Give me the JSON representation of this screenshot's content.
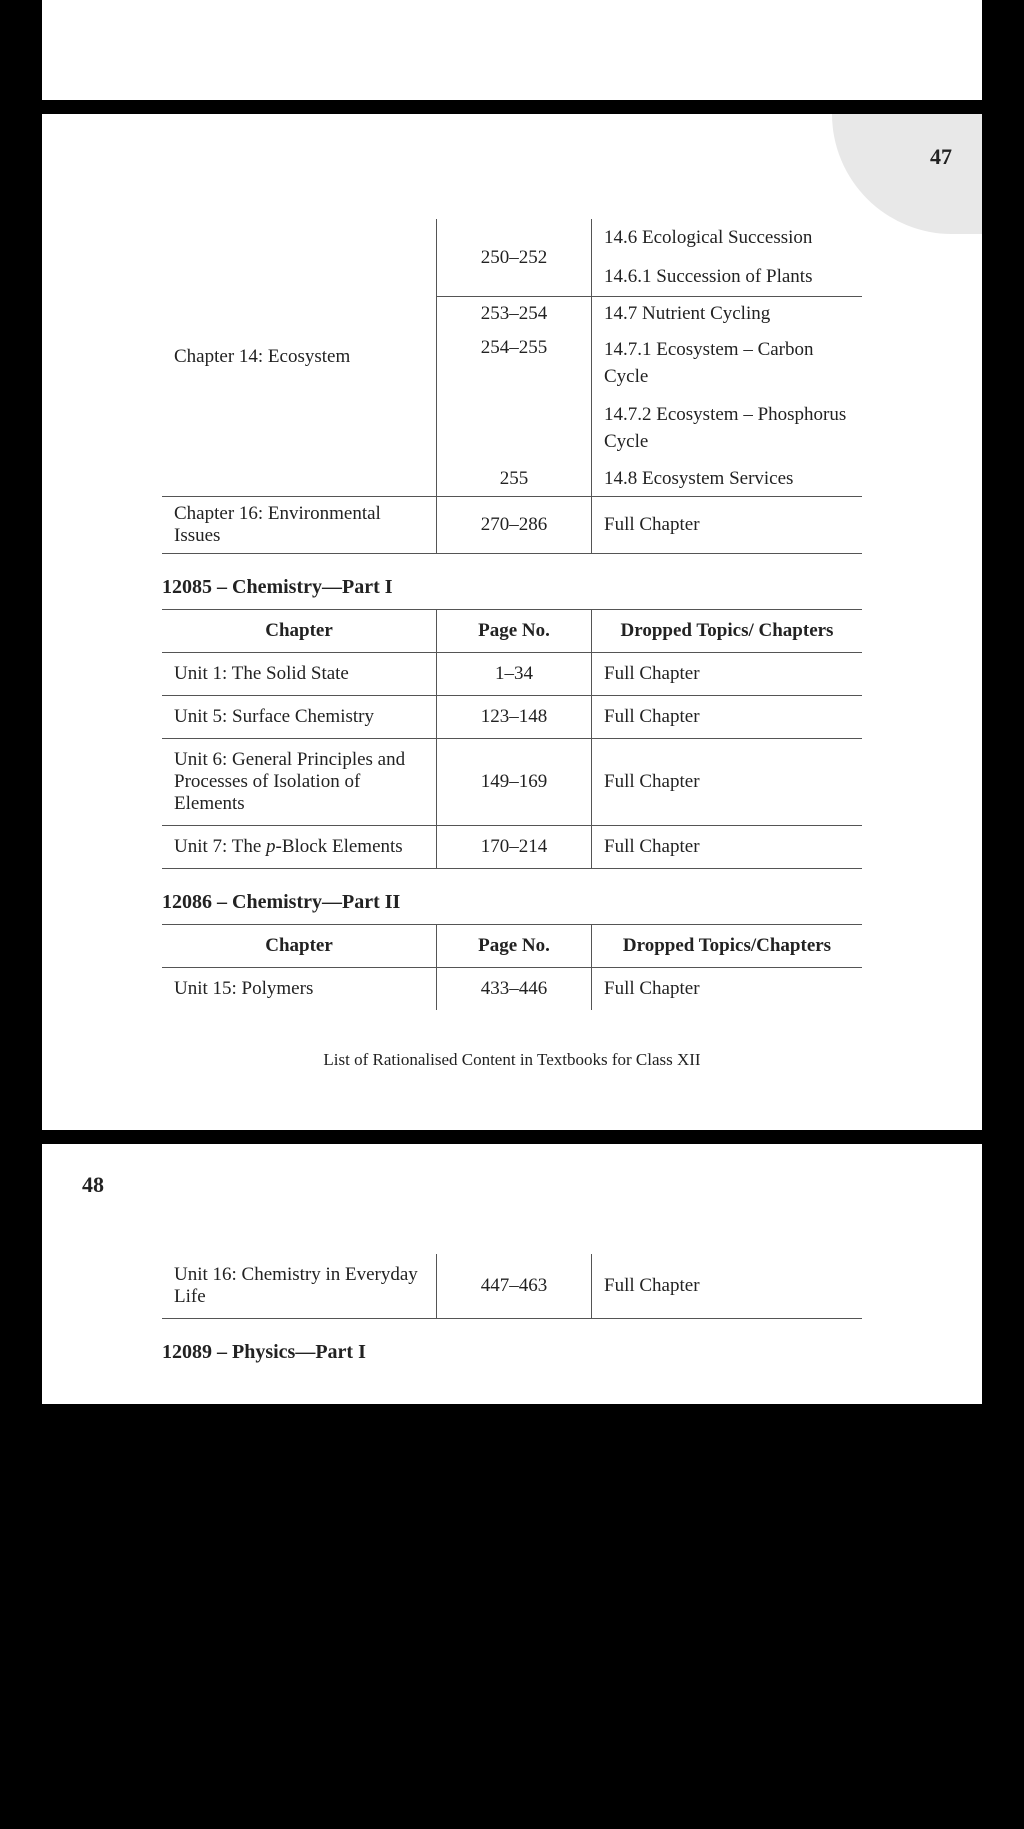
{
  "page47": {
    "number": "47",
    "ecosystem_table": {
      "chapter14_label": "Chapter 14: Ecosystem",
      "rows": [
        {
          "pages": "250–252",
          "topics": [
            "14.6 Ecological Succession",
            "14.6.1 Succession of Plants"
          ]
        },
        {
          "pages": "253–254",
          "topics": [
            "14.7 Nutrient Cycling"
          ]
        },
        {
          "pages": "254–255",
          "topics": [
            "14.7.1 Ecosystem – Carbon Cycle",
            "14.7.2 Ecosystem – Phosphorus Cycle"
          ]
        },
        {
          "pages": "255",
          "topics": [
            "14.8 Ecosystem Services"
          ]
        }
      ],
      "chapter16_label": "Chapter 16: Environmental Issues",
      "chapter16_pages": "270–286",
      "chapter16_dropped": "Full Chapter"
    },
    "chem1_title": "12085 – Chemistry—Part I",
    "chem1_table": {
      "headers": {
        "chapter": "Chapter",
        "page": "Page No.",
        "dropped": "Dropped Topics/ Chapters"
      },
      "rows": [
        {
          "chapter": "Unit 1: The Solid State",
          "pages": "1–34",
          "dropped": "Full Chapter"
        },
        {
          "chapter": "Unit 5: Surface Chemistry",
          "pages": "123–148",
          "dropped": "Full Chapter"
        },
        {
          "chapter": "Unit 6: General Principles and Processes of Isolation of Elements",
          "pages": "149–169",
          "dropped": "Full Chapter"
        },
        {
          "chapter_html": "Unit 7: The <i>p</i>-Block Elements",
          "chapter": "Unit 7: The p-Block Elements",
          "pages": "170–214",
          "dropped": "Full Chapter"
        }
      ]
    },
    "chem2_title": "12086 – Chemistry—Part II",
    "chem2_table": {
      "headers": {
        "chapter": "Chapter",
        "page": "Page No.",
        "dropped": "Dropped Topics/Chapters"
      },
      "rows": [
        {
          "chapter": "Unit 15: Polymers",
          "pages": "433–446",
          "dropped": "Full Chapter"
        }
      ]
    },
    "footer": "List of Rationalised Content in Textbooks for Class XII"
  },
  "page48": {
    "number": "48",
    "chem2_cont": {
      "rows": [
        {
          "chapter": "Unit 16: Chemistry in Everyday Life",
          "pages": "447–463",
          "dropped": "Full Chapter"
        }
      ]
    },
    "physics_title": "12089 – Physics—Part I"
  },
  "style": {
    "background": "#000000",
    "page_bg": "#ffffff",
    "border_color": "#555555",
    "corner_bg": "#e8e8e8",
    "body_fontsize": 19,
    "title_fontsize": 20,
    "pagenum_fontsize": 22
  }
}
